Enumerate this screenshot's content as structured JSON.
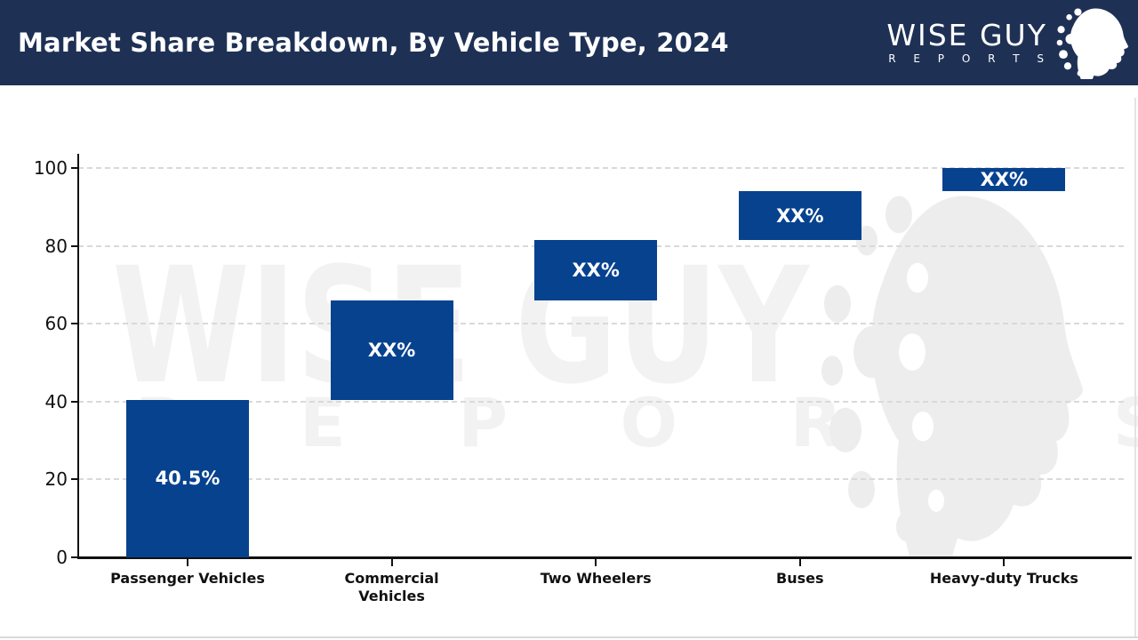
{
  "header": {
    "title": "Market Share Breakdown, By Vehicle Type, 2024",
    "logo": {
      "line1": "WISE GUY",
      "line2": "R E P O R T S"
    }
  },
  "watermark": {
    "line1": "WISE GUY",
    "line2": "R E P O R T S"
  },
  "chart_data": {
    "type": "bar",
    "subtype": "waterfall",
    "title": "Market Share Breakdown, By Vehicle Type, 2024",
    "categories": [
      "Passenger Vehicles",
      "Commercial Vehicles",
      "Two Wheelers",
      "Buses",
      "Heavy-duty Trucks"
    ],
    "segments": [
      {
        "category": "Passenger Vehicles",
        "start": 0,
        "end": 40.5,
        "label": "40.5%"
      },
      {
        "category": "Commercial Vehicles",
        "start": 40.5,
        "end": 66,
        "label": "XX%"
      },
      {
        "category": "Two Wheelers",
        "start": 66,
        "end": 81.5,
        "label": "XX%"
      },
      {
        "category": "Buses",
        "start": 81.5,
        "end": 94,
        "label": "XX%"
      },
      {
        "category": "Heavy-duty Trucks",
        "start": 94,
        "end": 100,
        "label": "XX%"
      }
    ],
    "y_ticks": [
      0,
      20,
      40,
      60,
      80,
      100
    ],
    "ylim": [
      0,
      103.5
    ],
    "xlabel": "",
    "ylabel": "",
    "grid": "horizontal-dashed",
    "legend": "none",
    "bar_color": "#07428f",
    "bar_label_color": "#ffffff"
  },
  "colors": {
    "header_bg": "#1e3155",
    "bar": "#07428f",
    "grid": "#d9d9d9",
    "axis": "#111111",
    "watermark": "#f2f2f2"
  }
}
